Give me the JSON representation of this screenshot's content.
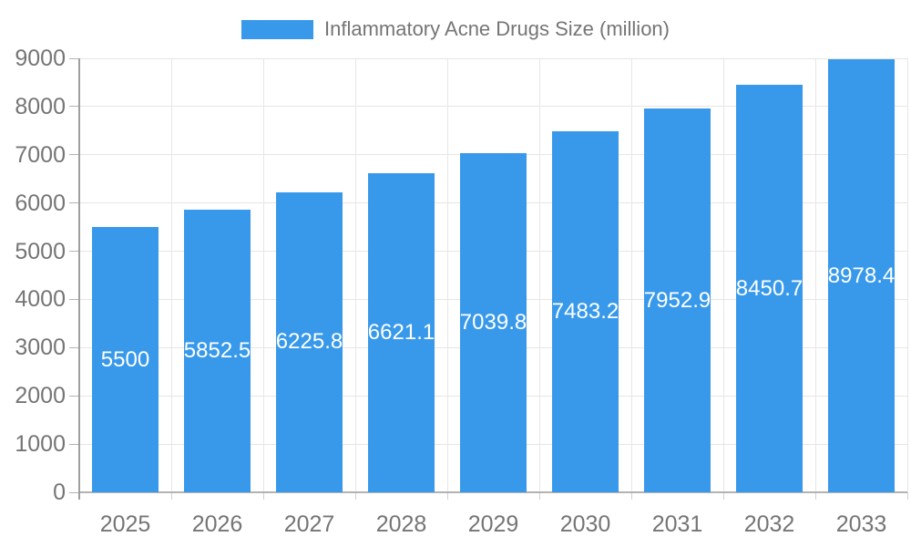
{
  "chart_data": {
    "type": "bar",
    "title": "Inflammatory Acne Drugs Size (million)",
    "legend_position": "top-center",
    "categories": [
      "2025",
      "2026",
      "2027",
      "2028",
      "2029",
      "2030",
      "2031",
      "2032",
      "2033"
    ],
    "series": [
      {
        "name": "Inflammatory Acne Drugs Size (million)",
        "values": [
          5500,
          5852.5,
          6225.8,
          6621.1,
          7039.8,
          7483.2,
          7952.9,
          8450.7,
          8978.4
        ]
      }
    ],
    "value_labels": [
      "5500",
      "5852.5",
      "6225.8",
      "6621.1",
      "7039.8",
      "7483.2",
      "7952.9",
      "8450.7",
      "8978.4"
    ],
    "xlabel": "",
    "ylabel": "",
    "ylim": [
      0,
      9000
    ],
    "ytick_step": 1000,
    "ytick_labels": [
      "0",
      "1000",
      "2000",
      "3000",
      "4000",
      "5000",
      "6000",
      "7000",
      "8000",
      "9000"
    ],
    "grid": true,
    "colors": {
      "bar": "#3899ea",
      "value_label": "#ffffff",
      "axis_text": "#757575",
      "gridline": "#e6e6e6",
      "baseline": "#b3b3b3",
      "axis_line": "#9e9e9e",
      "tick": "#cfcfcf",
      "background": "#ffffff"
    }
  }
}
